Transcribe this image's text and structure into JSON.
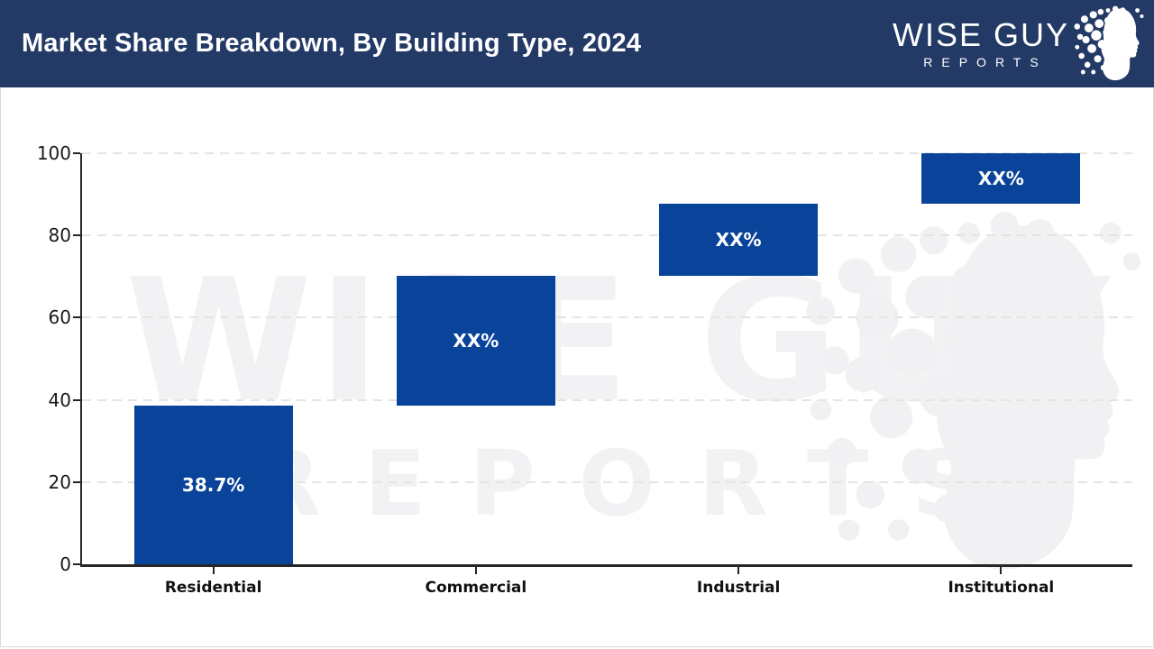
{
  "header": {
    "title": "Market Share Breakdown, By Building Type, 2024",
    "bg_color": "#233A66",
    "logo": {
      "line1": "WISE GUY",
      "line2": "REPORTS"
    }
  },
  "watermark": {
    "line1": "WISE GUY",
    "line2": "REPORTS"
  },
  "icons": {
    "logo_head": "wiseguy-head-icon",
    "watermark_head": "watermark-head-icon"
  },
  "chart_data": {
    "type": "bar",
    "subtype": "waterfall",
    "title": "Market Share Breakdown, By Building Type, 2024",
    "categories": [
      "Residential",
      "Commercial",
      "Industrial",
      "Institutional"
    ],
    "segments": [
      {
        "category": "Residential",
        "start": 0,
        "end": 38.7,
        "label": "38.7%"
      },
      {
        "category": "Commercial",
        "start": 38.7,
        "end": 70.2,
        "label": "XX%"
      },
      {
        "category": "Industrial",
        "start": 70.2,
        "end": 87.7,
        "label": "XX%"
      },
      {
        "category": "Institutional",
        "start": 87.7,
        "end": 100,
        "label": "XX%"
      }
    ],
    "ylim": [
      0,
      100
    ],
    "yticks": [
      0,
      20,
      40,
      60,
      80,
      100
    ],
    "xlabel": "",
    "ylabel": "",
    "grid": "dashed-horizontal",
    "legend": "none",
    "colors": {
      "bar": "#09439A",
      "bar_label": "#FFFFFF",
      "axis": "#262626",
      "gridline": "#E4E4E4",
      "tick_label": "#1A1A1A",
      "watermark": "#F2F2F4"
    }
  }
}
